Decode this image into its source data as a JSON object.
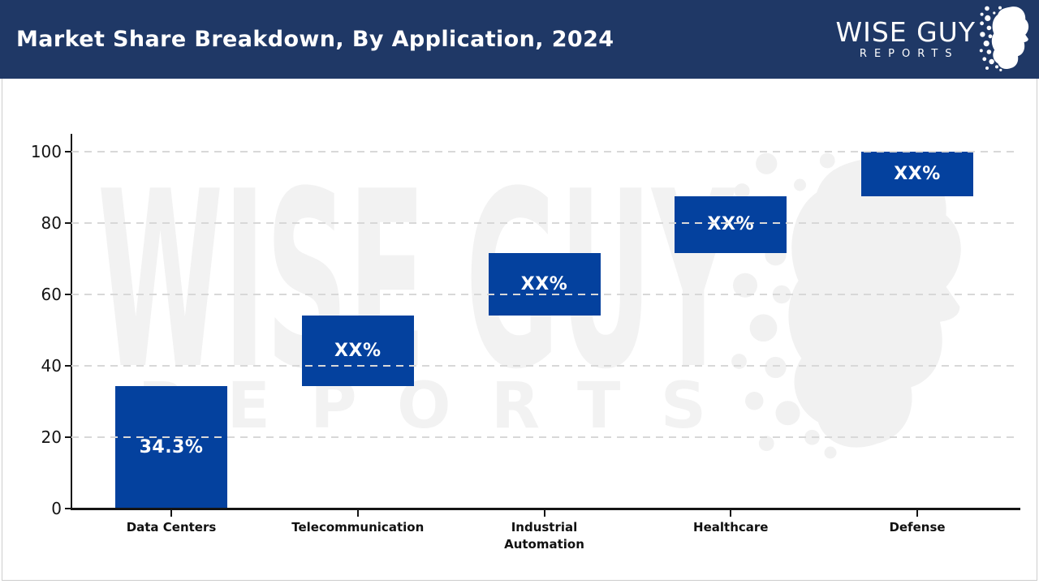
{
  "header": {
    "title": "Market Share Breakdown, By Application, 2024",
    "logo": {
      "line1": "WISE GUY",
      "line2": "REPORTS"
    }
  },
  "watermark": {
    "line1": "WISE GUY",
    "line2": "REPORTS"
  },
  "colors": {
    "header_bg": "#1f3866",
    "bar": "#04419e",
    "bar_label_text": "#ffffff",
    "gridline": "#d8d8d8",
    "axis": "#141414",
    "watermark_gray": "#f2f2f2",
    "panel_border": "#cdcdcd"
  },
  "chart_data": {
    "type": "bar",
    "variant": "waterfall",
    "title": "Market Share Breakdown, By Application, 2024",
    "categories": [
      "Data Centers",
      "Telecommunication",
      "Industrial Automation",
      "Healthcare",
      "Defense"
    ],
    "category_labels": [
      "Data Centers",
      "Telecommunication",
      "Industrial\nAutomation",
      "Healthcare",
      "Defense"
    ],
    "segments": [
      {
        "category": "Data Centers",
        "start": 0,
        "end": 34.3,
        "value": 34.3,
        "label": "34.3%"
      },
      {
        "category": "Telecommunication",
        "start": 34.3,
        "end": 54.1,
        "value": 19.8,
        "label": "XX%"
      },
      {
        "category": "Industrial Automation",
        "start": 54.1,
        "end": 71.6,
        "value": 17.5,
        "label": "XX%"
      },
      {
        "category": "Healthcare",
        "start": 71.6,
        "end": 87.5,
        "value": 15.9,
        "label": "XX%"
      },
      {
        "category": "Defense",
        "start": 87.5,
        "end": 100,
        "value": 12.5,
        "label": "XX%"
      }
    ],
    "ylim": [
      0,
      100
    ],
    "yticks": [
      0,
      20,
      40,
      60,
      80,
      100
    ],
    "xlabel": "",
    "ylabel": "",
    "grid": "horizontal-dashed",
    "legend": "none"
  }
}
